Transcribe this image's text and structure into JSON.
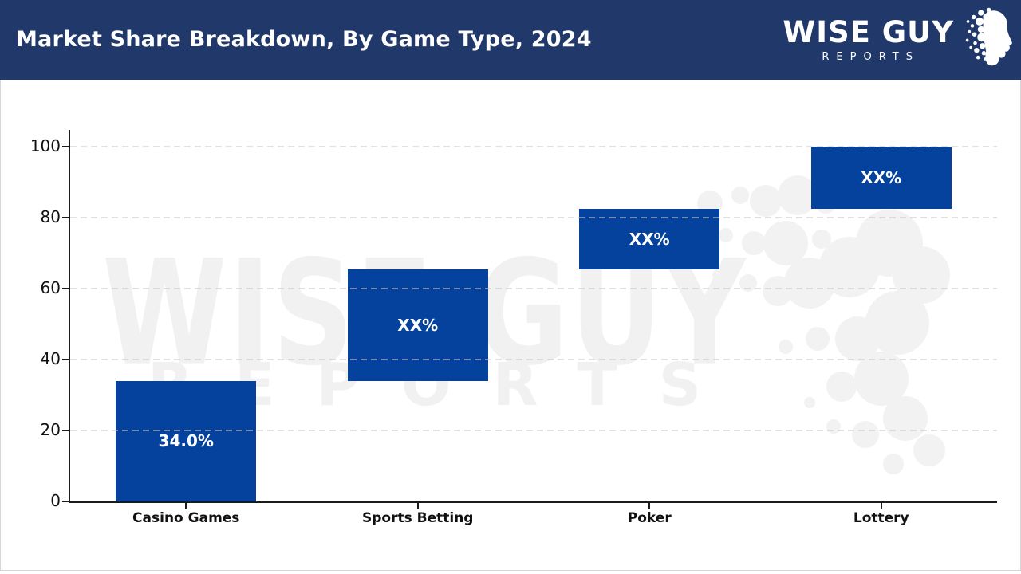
{
  "header": {
    "title": "Market Share Breakdown, By Game Type, 2024",
    "logo": {
      "line1": "WISE GUY",
      "line2": "REPORTS",
      "head_icon": "face-profile-dots-icon"
    }
  },
  "watermark": {
    "line1": "WISE GUY",
    "line2": "REPORTS",
    "head_icon": "face-profile-dots-watermark"
  },
  "chart_data": {
    "type": "bar",
    "subtype": "waterfall",
    "title": "Market Share Breakdown, By Game Type, 2024",
    "categories": [
      "Casino Games",
      "Sports Betting",
      "Poker",
      "Lottery"
    ],
    "segments": [
      {
        "category": "Casino Games",
        "start": 0,
        "end": 34.0,
        "value": 34.0,
        "label": "34.0%"
      },
      {
        "category": "Sports Betting",
        "start": 34.0,
        "end": 65.5,
        "value": 31.5,
        "label": "XX%"
      },
      {
        "category": "Poker",
        "start": 65.5,
        "end": 82.5,
        "value": 17.0,
        "label": "XX%"
      },
      {
        "category": "Lottery",
        "start": 82.5,
        "end": 100.0,
        "value": 17.5,
        "label": "XX%"
      }
    ],
    "xlabel": "",
    "ylabel": "",
    "yticks": [
      0,
      20,
      40,
      60,
      80,
      100
    ],
    "ylim": [
      0,
      104.7
    ],
    "grid": "dashed-horizontal",
    "legend": "none",
    "colors": {
      "bar": "#05429d",
      "bar_label": "#ffffff",
      "axis": "#1a1a1a",
      "grid": "#dcdcdc",
      "header_bg": "#21396a",
      "watermark": "#f1f1f1"
    }
  }
}
